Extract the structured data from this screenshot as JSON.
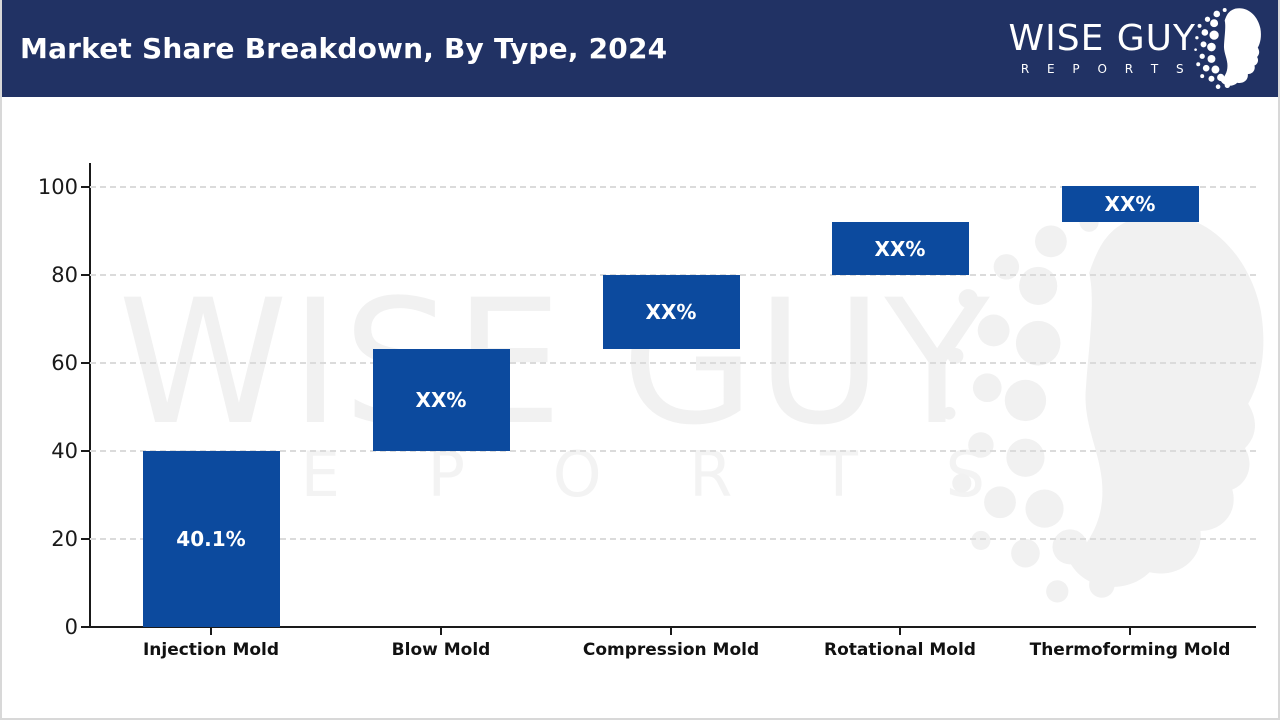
{
  "header": {
    "title": "Market Share Breakdown, By Type, 2024",
    "logo": {
      "name": "WISE GUY",
      "sub": "R E P O R T S",
      "icon": "dotted-head-profile"
    }
  },
  "watermark": {
    "line1": "WISE GUY",
    "line2": "R E P O R T S"
  },
  "colors": {
    "header_background": "#213264",
    "bar_fill": "#0c4a9e",
    "bar_label_text": "#ffffff",
    "gridline": "#dbdbdb",
    "axis": "#1a1a1a",
    "watermark": "#f1f1f1"
  },
  "chart_data": {
    "type": "bar",
    "subtype": "waterfall-stacked-share",
    "title": "Market Share Breakdown, By Type, 2024",
    "categories": [
      "Injection Mold",
      "Blow Mold",
      "Compression Mold",
      "Rotational Mold",
      "Thermoforming Mold"
    ],
    "segments": [
      {
        "category": "Injection Mold",
        "start": 0,
        "end": 40.1,
        "label": "40.1%"
      },
      {
        "category": "Blow Mold",
        "start": 40.1,
        "end": 63.1,
        "label": "XX%"
      },
      {
        "category": "Compression Mold",
        "start": 63.1,
        "end": 79.9,
        "label": "XX%"
      },
      {
        "category": "Rotational Mold",
        "start": 79.9,
        "end": 92.0,
        "label": "XX%"
      },
      {
        "category": "Thermoforming Mold",
        "start": 92.0,
        "end": 100.2,
        "label": "XX%"
      }
    ],
    "yticks": [
      0,
      20,
      40,
      60,
      80,
      100
    ],
    "ylim": [
      0,
      105.5
    ],
    "xlabel": "",
    "ylabel": "",
    "grid": "horizontal-dashed",
    "legend": "none"
  }
}
